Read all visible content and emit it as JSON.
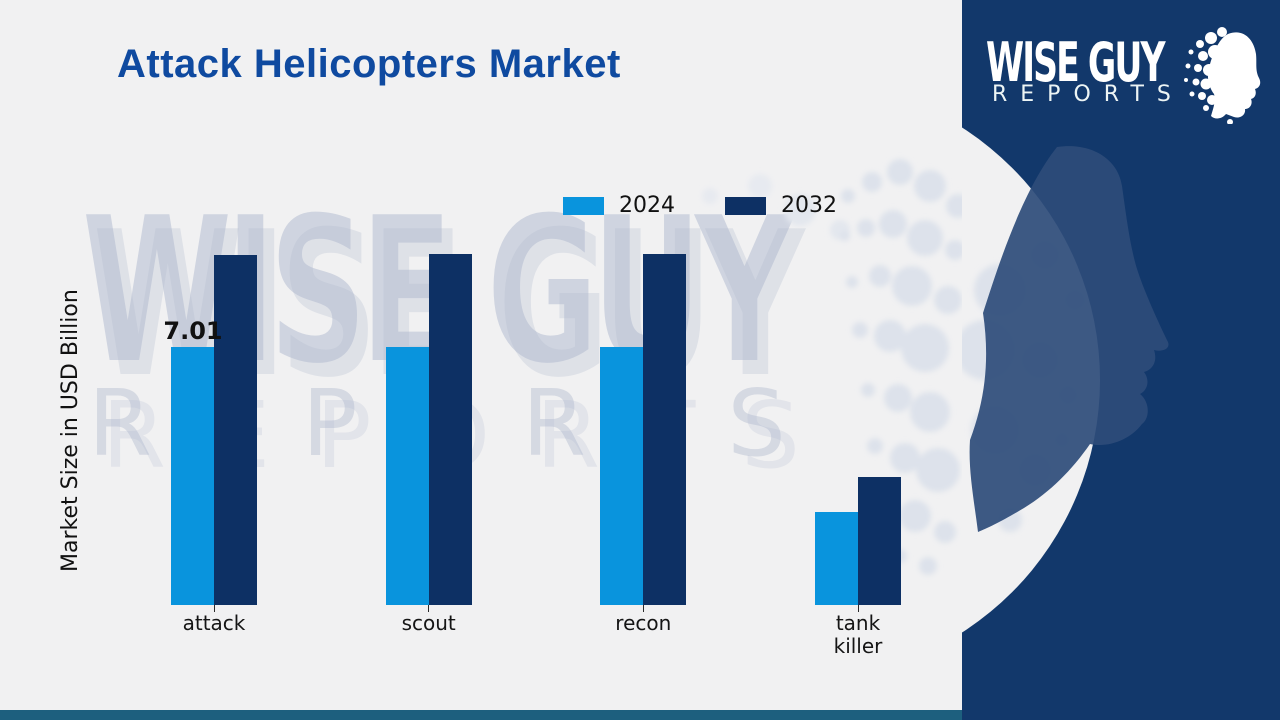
{
  "page": {
    "background_color": "#f1f1f2",
    "bottom_bar_color": "#1d5f7e"
  },
  "header": {
    "title": "Attack Helicopters Market",
    "title_color": "#0f4aa0"
  },
  "logo": {
    "line1": "WISE GUY",
    "line2": "REPORTS",
    "panel_color": "#12386b"
  },
  "watermark": {
    "line1": "WISE GUY",
    "line2": "REPORTS"
  },
  "chart_data": {
    "type": "bar",
    "title": "Attack Helicopters Market",
    "xlabel": "",
    "ylabel": "Market Size in USD Billion",
    "categories": [
      "attack",
      "scout",
      "recon",
      "tank killer"
    ],
    "series": [
      {
        "name": "2024",
        "color": "#0994dd",
        "values": [
          7.01,
          7.0,
          7.0,
          2.53
        ]
      },
      {
        "name": "2032",
        "color": "#0d3064",
        "values": [
          9.51,
          9.54,
          9.54,
          3.48
        ]
      }
    ],
    "bar_value_labels": [
      {
        "series": "2024",
        "category": "attack",
        "text": "7.01"
      }
    ],
    "ylim": [
      0,
      10.5
    ],
    "grid": false,
    "legend_position": "top-center",
    "note": "Only the 7.01 value is printed on the chart; other values are estimated from bar heights."
  }
}
